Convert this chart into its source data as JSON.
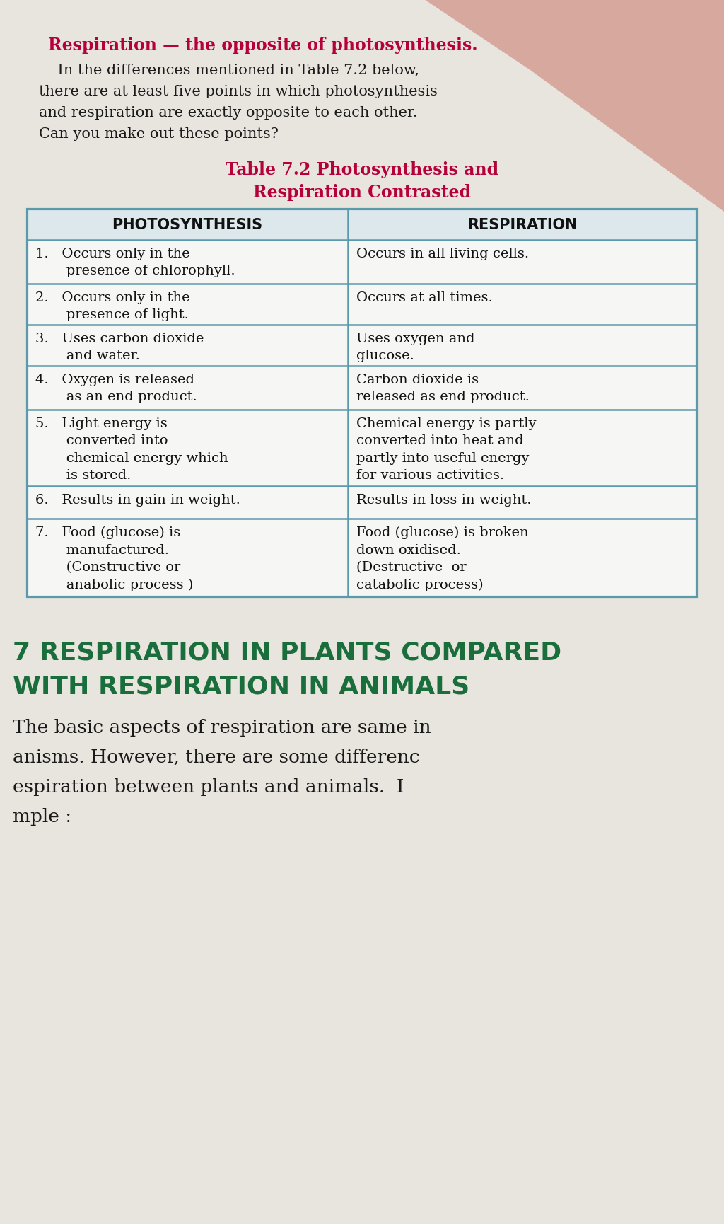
{
  "page_bg": "#e8e4de",
  "title_heading": "Respiration — the opposite of photosynthesis.",
  "title_heading_color": "#b5003a",
  "intro_lines": [
    "    In the differences mentioned in Table 7.2 below,",
    "there are at least five points in which photosynthesis",
    "and respiration are exactly opposite to each other.",
    "Can you make out these points?"
  ],
  "intro_text_color": "#1a1a1a",
  "table_title_line1": "Table 7.2 Photosynthesis and",
  "table_title_line2": "Respiration Contrasted",
  "table_title_color": "#b5003a",
  "col1_header": "PHOTOSYNTHESIS",
  "col2_header": "RESPIRATION",
  "header_color": "#111111",
  "table_border_color": "#5b9aaa",
  "rows": [
    {
      "photo": "1.   Occurs only in the\n       presence of chlorophyll.",
      "resp": "Occurs in all living cells."
    },
    {
      "photo": "2.   Occurs only in the\n       presence of light.",
      "resp": "Occurs at all times."
    },
    {
      "photo": "3.   Uses carbon dioxide\n       and water.",
      "resp": "Uses oxygen and\nglucose."
    },
    {
      "photo": "4.   Oxygen is released\n       as an end product.",
      "resp": "Carbon dioxide is\nreleased as end product."
    },
    {
      "photo": "5.   Light energy is\n       converted into\n       chemical energy which\n       is stored.",
      "resp": "Chemical energy is partly\nconverted into heat and\npartly into useful energy\nfor various activities."
    },
    {
      "photo": "6.   Results in gain in weight.",
      "resp": "Results in loss in weight."
    },
    {
      "photo": "7.   Food (glucose) is\n       manufactured.\n       (Constructive or\n       anabolic process )",
      "resp": "Food (glucose) is broken\ndown oxidised.\n(Destructive  or\ncatabolic process)"
    }
  ],
  "section_heading_line1": "7 RESPIRATION IN PLANTS COMPARED",
  "section_heading_line2": "WITH RESPIRATION IN ANIMALS",
  "section_heading_color": "#1a6e3c",
  "body_text_lines": [
    "The basic aspects of respiration are same in",
    "anisms. However, there are some differenc",
    "espiration between plants and animals.  I",
    "mple :"
  ],
  "body_text_color": "#1a1a1a"
}
